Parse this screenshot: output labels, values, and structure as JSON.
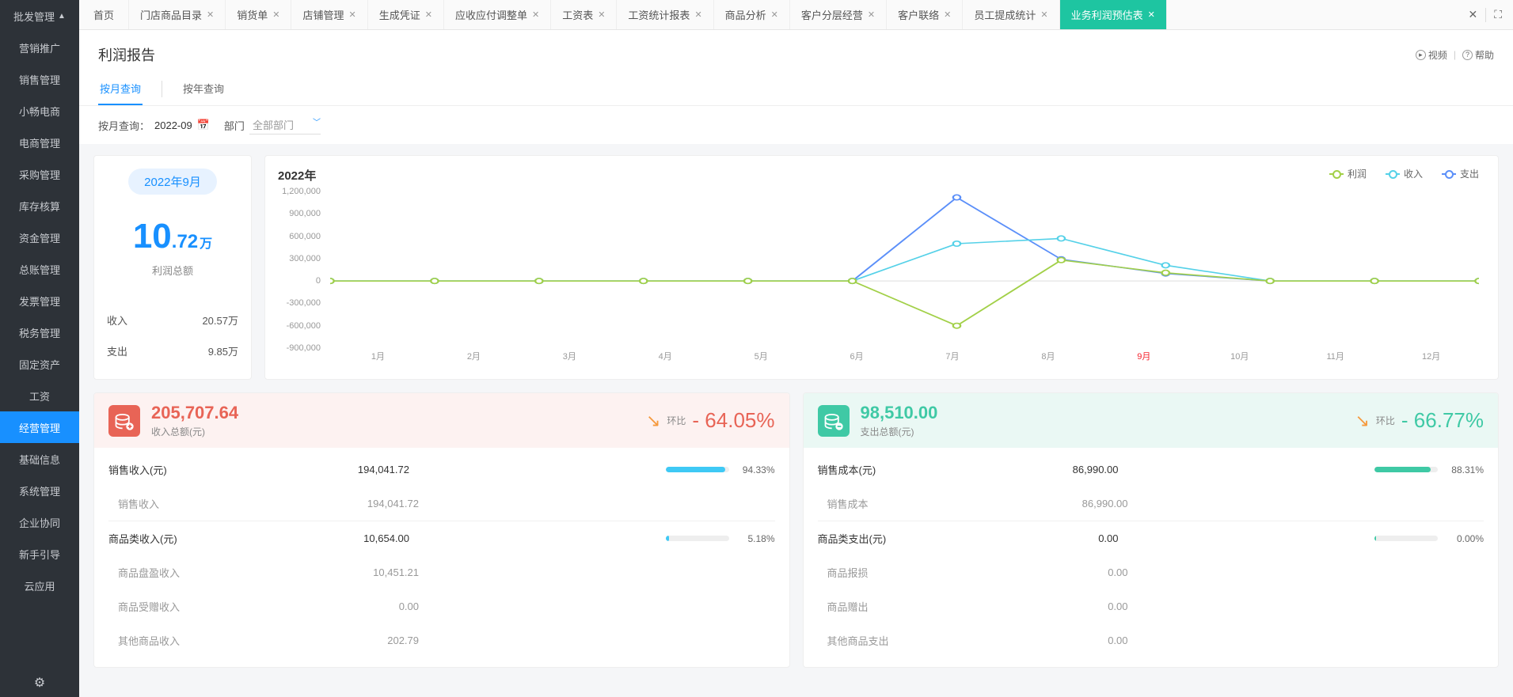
{
  "sidebar": {
    "header": "批发管理",
    "items": [
      {
        "label": "营销推广"
      },
      {
        "label": "销售管理"
      },
      {
        "label": "小畅电商"
      },
      {
        "label": "电商管理"
      },
      {
        "label": "采购管理"
      },
      {
        "label": "库存核算"
      },
      {
        "label": "资金管理"
      },
      {
        "label": "总账管理"
      },
      {
        "label": "发票管理"
      },
      {
        "label": "税务管理"
      },
      {
        "label": "固定资产"
      },
      {
        "label": "工资"
      },
      {
        "label": "经营管理",
        "active": true
      },
      {
        "label": "基础信息"
      },
      {
        "label": "系统管理"
      },
      {
        "label": "企业协同"
      },
      {
        "label": "新手引导"
      },
      {
        "label": "云应用"
      }
    ]
  },
  "tabs": [
    {
      "label": "首页",
      "home": true
    },
    {
      "label": "门店商品目录",
      "closable": true
    },
    {
      "label": "销货单",
      "closable": true
    },
    {
      "label": "店铺管理",
      "closable": true
    },
    {
      "label": "生成凭证",
      "closable": true
    },
    {
      "label": "应收应付调整单",
      "closable": true
    },
    {
      "label": "工资表",
      "closable": true
    },
    {
      "label": "工资统计报表",
      "closable": true
    },
    {
      "label": "商品分析",
      "closable": true
    },
    {
      "label": "客户分层经营",
      "closable": true
    },
    {
      "label": "客户联络",
      "closable": true
    },
    {
      "label": "员工提成统计",
      "closable": true
    },
    {
      "label": "业务利润预估表",
      "closable": true,
      "active": true
    }
  ],
  "page": {
    "title": "利润报告",
    "video": "视频",
    "help": "帮助"
  },
  "subtabs": [
    {
      "label": "按月查询",
      "active": true
    },
    {
      "label": "按年查询"
    }
  ],
  "filters": {
    "month_label": "按月查询：",
    "month_value": "2022-09",
    "dept_label": "部门",
    "dept_value": "全部部门"
  },
  "summary": {
    "period": "2022年9月",
    "profit_int": "10",
    "profit_dec": ".72",
    "profit_unit": "万",
    "profit_label": "利润总额",
    "income_label": "收入",
    "income_value": "20.57万",
    "expense_label": "支出",
    "expense_value": "9.85万"
  },
  "chart": {
    "title": "2022年",
    "legend": {
      "profit": "利润",
      "income": "收入",
      "expense": "支出"
    },
    "colors": {
      "profit": "#a2d048",
      "income": "#55d1e8",
      "expense": "#5b8ff9"
    },
    "y_ticks": [
      "1,200,000",
      "900,000",
      "600,000",
      "300,000",
      "0",
      "-300,000",
      "-600,000",
      "-900,000"
    ],
    "y_min": -900000,
    "y_max": 1200000,
    "x_labels": [
      "1月",
      "2月",
      "3月",
      "4月",
      "5月",
      "6月",
      "7月",
      "8月",
      "9月",
      "10月",
      "11月",
      "12月"
    ],
    "active_month_index": 8,
    "series": {
      "profit": [
        0,
        0,
        0,
        0,
        0,
        0,
        -600000,
        280000,
        110000,
        0,
        0,
        0
      ],
      "income": [
        0,
        0,
        0,
        0,
        0,
        0,
        500000,
        570000,
        210000,
        0,
        0,
        0
      ],
      "expense": [
        0,
        0,
        0,
        0,
        0,
        0,
        1120000,
        290000,
        100000,
        0,
        0,
        0
      ]
    }
  },
  "income_panel": {
    "amount": "205,707.64",
    "sub": "收入总额(元)",
    "hb": "环比",
    "pct": "- 64.05%",
    "rows": [
      {
        "type": "cat",
        "name": "销售收入(元)",
        "val": "194,041.72",
        "pct": "94.33%",
        "pctv": 94.33
      },
      {
        "type": "sub",
        "name": "销售收入",
        "val": "194,041.72"
      },
      {
        "type": "cat",
        "name": "商品类收入(元)",
        "val": "10,654.00",
        "pct": "5.18%",
        "pctv": 5.18
      },
      {
        "type": "sub",
        "name": "商品盘盈收入",
        "val": "10,451.21"
      },
      {
        "type": "sub",
        "name": "商品受赠收入",
        "val": "0.00"
      },
      {
        "type": "sub",
        "name": "其他商品收入",
        "val": "202.79"
      }
    ]
  },
  "expense_panel": {
    "amount": "98,510.00",
    "sub": "支出总额(元)",
    "hb": "环比",
    "pct": "- 66.77%",
    "rows": [
      {
        "type": "cat",
        "name": "销售成本(元)",
        "val": "86,990.00",
        "pct": "88.31%",
        "pctv": 88.31
      },
      {
        "type": "sub",
        "name": "销售成本",
        "val": "86,990.00"
      },
      {
        "type": "cat",
        "name": "商品类支出(元)",
        "val": "0.00",
        "pct": "0.00%",
        "pctv": 0
      },
      {
        "type": "sub",
        "name": "商品报损",
        "val": "0.00"
      },
      {
        "type": "sub",
        "name": "商品赠出",
        "val": "0.00"
      },
      {
        "type": "sub",
        "name": "其他商品支出",
        "val": "0.00"
      }
    ]
  }
}
